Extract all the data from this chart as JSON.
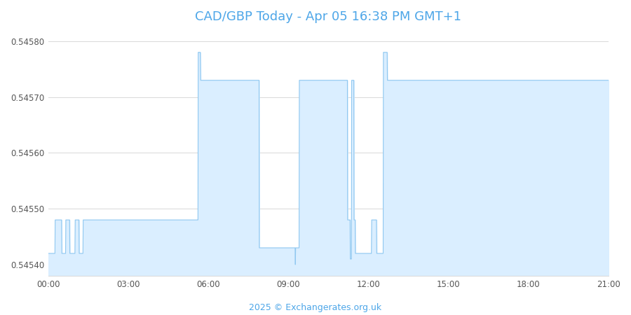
{
  "title": "CAD/GBP Today - Apr 05 16:38 PM GMT+1",
  "title_color": "#4da6e8",
  "title_fontsize": 13,
  "footer": "2025 © Exchangerates.org.uk",
  "footer_color": "#4da6e8",
  "footer_fontsize": 9,
  "ylim": [
    0.54538,
    0.54582
  ],
  "yticks": [
    0.5454,
    0.5455,
    0.5456,
    0.5457,
    0.5458
  ],
  "xtick_labels": [
    "00:00",
    "03:00",
    "06:00",
    "09:00",
    "12:00",
    "15:00",
    "18:00",
    "21:00"
  ],
  "xlim": [
    0,
    21
  ],
  "xticks": [
    0,
    3,
    6,
    9,
    12,
    15,
    18,
    21
  ],
  "line_color": "#90c8f0",
  "fill_color": "#daeeff",
  "bg_color": "#ffffff",
  "grid_color": "#d8d8d8",
  "x_data": [
    0.0,
    0.25,
    0.26,
    0.5,
    0.51,
    0.65,
    0.66,
    0.8,
    0.81,
    1.0,
    1.01,
    1.15,
    1.16,
    1.3,
    1.31,
    5.6,
    5.61,
    5.62,
    5.63,
    5.7,
    5.71,
    6.0,
    6.01,
    7.9,
    7.91,
    8.2,
    8.21,
    9.25,
    9.26,
    9.27,
    9.4,
    9.41,
    10.0,
    10.01,
    11.2,
    11.21,
    11.22,
    11.3,
    11.31,
    11.32,
    11.35,
    11.36,
    11.37,
    11.45,
    11.46,
    11.5,
    11.51,
    12.1,
    12.11,
    12.12,
    12.3,
    12.31,
    12.5,
    12.51,
    12.55,
    12.56,
    12.57,
    12.7,
    12.71,
    13.1,
    13.11,
    16.9,
    16.91,
    21.0
  ],
  "y_data": [
    0.54542,
    0.54542,
    0.54548,
    0.54548,
    0.54542,
    0.54542,
    0.54548,
    0.54548,
    0.54542,
    0.54542,
    0.54548,
    0.54548,
    0.54542,
    0.54542,
    0.54548,
    0.54548,
    0.54548,
    0.54578,
    0.54578,
    0.54578,
    0.54573,
    0.54573,
    0.54573,
    0.54573,
    0.54543,
    0.54543,
    0.54543,
    0.54543,
    0.5454,
    0.54543,
    0.54543,
    0.54573,
    0.54573,
    0.54573,
    0.54573,
    0.54573,
    0.54548,
    0.54548,
    0.54548,
    0.54541,
    0.54541,
    0.54541,
    0.54573,
    0.54573,
    0.54548,
    0.54548,
    0.54542,
    0.54542,
    0.54542,
    0.54548,
    0.54548,
    0.54542,
    0.54542,
    0.54542,
    0.54542,
    0.54578,
    0.54578,
    0.54578,
    0.54573,
    0.54573,
    0.54573,
    0.54573,
    0.54573,
    0.54573
  ]
}
